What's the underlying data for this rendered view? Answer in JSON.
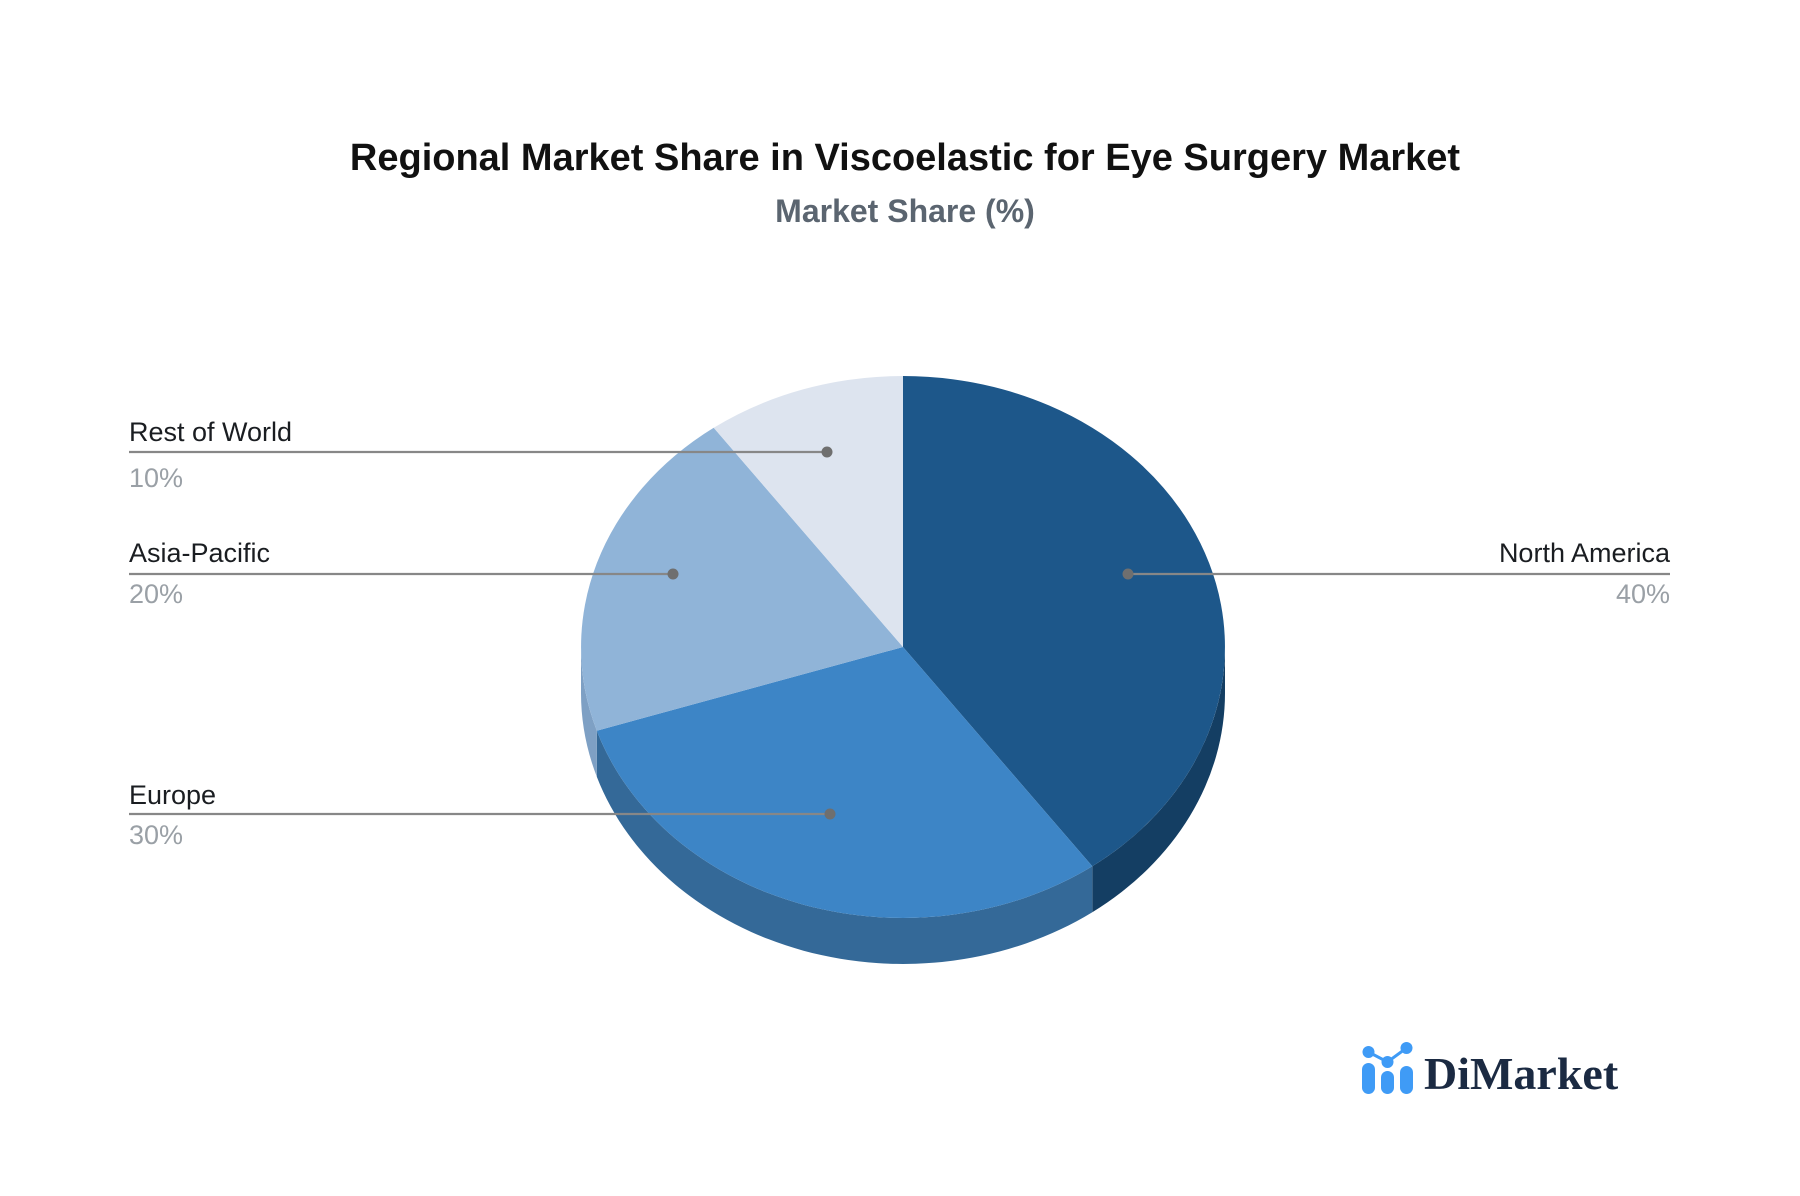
{
  "page": {
    "background": "#ffffff"
  },
  "chart_data": {
    "type": "pie",
    "style": "3d",
    "title": "Regional Market Share in Viscoelastic for Eye Surgery Market",
    "subtitle": "Market Share (%)",
    "unit": "%",
    "start_angle_deg": 0,
    "direction": "clockwise",
    "labels_layout": "callout",
    "legend_position": "none",
    "slices": [
      {
        "label": "North America",
        "value": 40,
        "pct": "40%",
        "color": "#1d578a",
        "side_color": "#143e63"
      },
      {
        "label": "Europe",
        "value": 30,
        "pct": "30%",
        "color": "#3d85c6",
        "side_color": "#346998"
      },
      {
        "label": "Asia-Pacific",
        "value": 20,
        "pct": "20%",
        "color": "#90b4d8",
        "side_color": "#7ea0c4"
      },
      {
        "label": "Rest of World",
        "value": 10,
        "pct": "10%",
        "color": "#dde4ef",
        "side_color": "#c9d2e0"
      }
    ],
    "colors": {
      "leader_line": "#878787",
      "leader_dot": "#6f6f6f",
      "label_text": "#1a1d21",
      "pct_text": "#9aa0a6",
      "title_text": "#111111",
      "subtitle_text": "#5b6570"
    }
  },
  "branding": {
    "name": "DiMarket",
    "icon": "bar-line-chart-icon",
    "icon_color": "#3f9bf6",
    "text_color": "#1b2a42"
  }
}
